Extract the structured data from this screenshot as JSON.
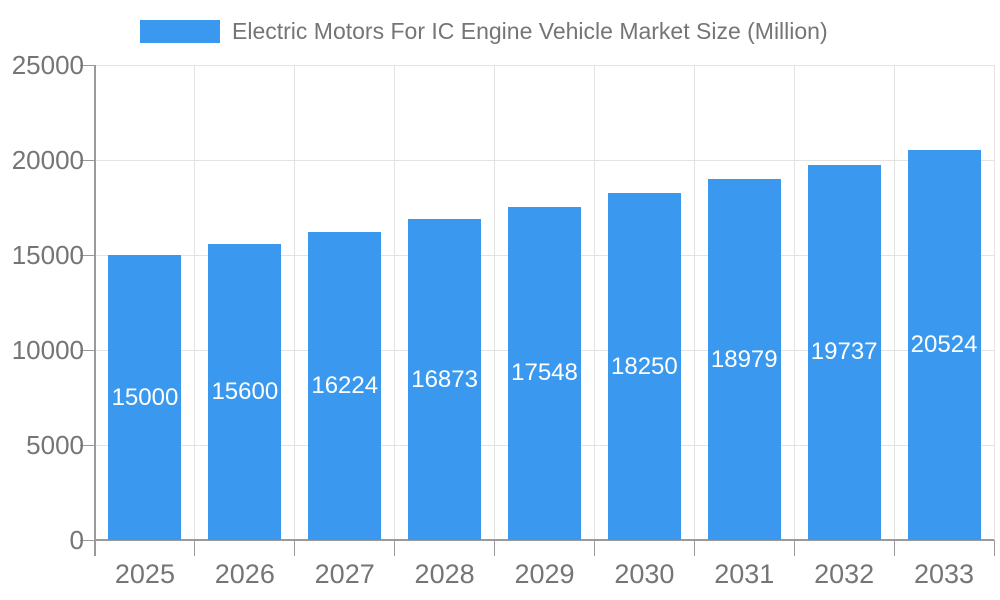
{
  "legend": {
    "label": "Electric Motors For IC Engine Vehicle Market Size (Million)"
  },
  "chart_data": {
    "type": "bar",
    "title": "Electric Motors For IC Engine Vehicle Market Size (Million)",
    "categories": [
      "2025",
      "2026",
      "2027",
      "2028",
      "2029",
      "2030",
      "2031",
      "2032",
      "2033"
    ],
    "values": [
      15000,
      15600,
      16224,
      16873,
      17548,
      18250,
      18979,
      19737,
      20524
    ],
    "value_labels": [
      "15000",
      "15600",
      "16224",
      "16873",
      "17548",
      "18250",
      "18979",
      "19737",
      "20524"
    ],
    "xlabel": "",
    "ylabel": "",
    "ylim": [
      0,
      25000
    ],
    "yticks": [
      0,
      5000,
      10000,
      15000,
      20000,
      25000
    ],
    "ytick_labels": [
      "0",
      "5000",
      "10000",
      "15000",
      "20000",
      "25000"
    ],
    "grid": true,
    "legend_position": "top-left",
    "value_label_position": "inside-center"
  },
  "colors": {
    "bar": "#3A99EE",
    "axis_line": "#9a9a9a",
    "gridline": "#e3e3e3",
    "label_text": "#757575",
    "value_label_text": "#ffffff",
    "background": "#ffffff"
  }
}
